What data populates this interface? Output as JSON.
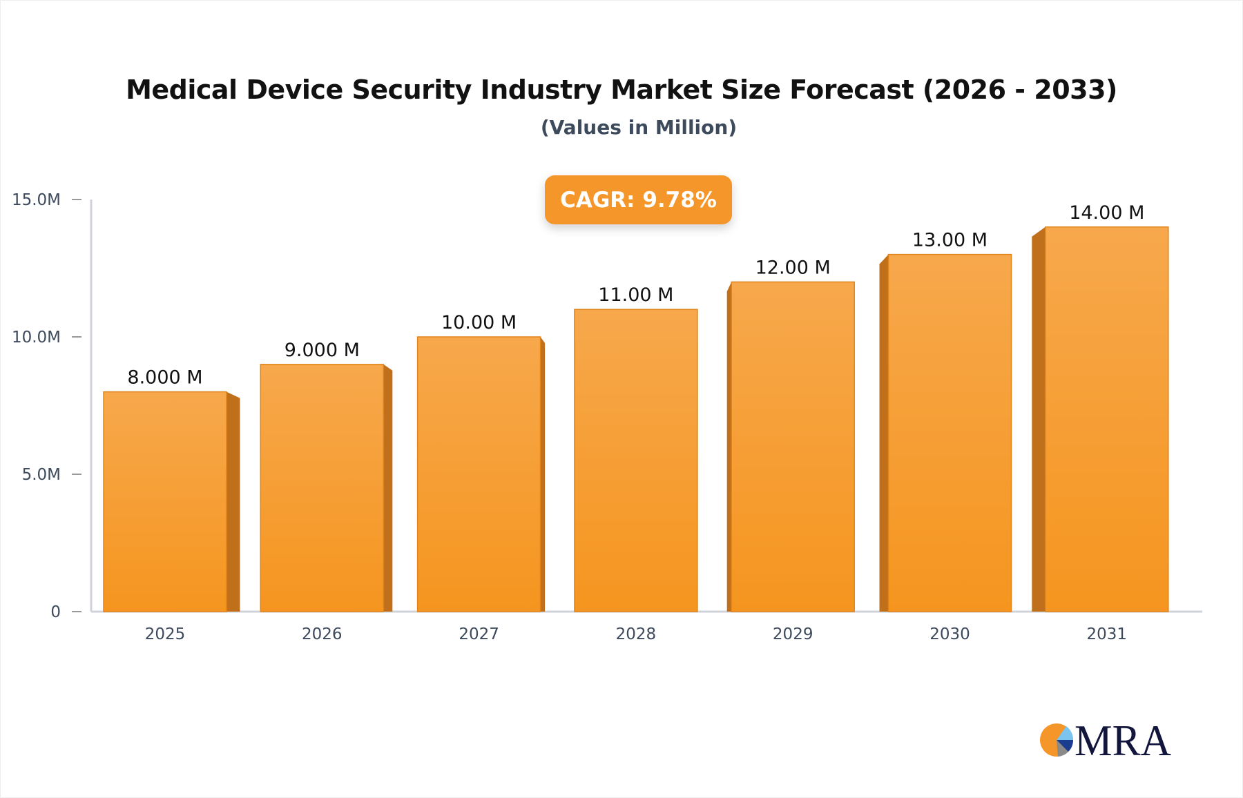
{
  "chart_data": {
    "type": "bar",
    "title": "Medical Device Security Industry Market Size Forecast (2026 - 2033)",
    "subtitle": "(Values in Million)",
    "annotation": "CAGR: 9.78%",
    "categories": [
      "2025",
      "2026",
      "2027",
      "2028",
      "2029",
      "2030",
      "2031"
    ],
    "values": [
      8.0,
      9.0,
      10.0,
      11.0,
      12.0,
      13.0,
      14.0
    ],
    "data_labels": [
      "8.000 M",
      "9.000 M",
      "10.00 M",
      "11.00 M",
      "12.00 M",
      "13.00 M",
      "14.00 M"
    ],
    "yticks": [
      {
        "value": 0,
        "label": "0"
      },
      {
        "value": 5,
        "label": "5.0M"
      },
      {
        "value": 10,
        "label": "10.0M"
      },
      {
        "value": 15,
        "label": "15.0M"
      }
    ],
    "ylim": [
      0,
      15
    ],
    "xlabel": "",
    "ylabel": "",
    "grid": false,
    "legend": "none",
    "colors": {
      "bar_top": "#f7a84c",
      "bar_bottom": "#f5951f",
      "bar_side": "#c0701a",
      "bar_edge": "#e0841a",
      "axis": "#d0d3da",
      "tick_text": "#3d4a5c"
    }
  },
  "logo": {
    "text": "MRA",
    "colors": {
      "orange": "#f5962a",
      "navy": "#12163d",
      "light_blue": "#7cc4f0",
      "blue": "#1a3d8f",
      "gray": "#8a8a8a"
    }
  }
}
